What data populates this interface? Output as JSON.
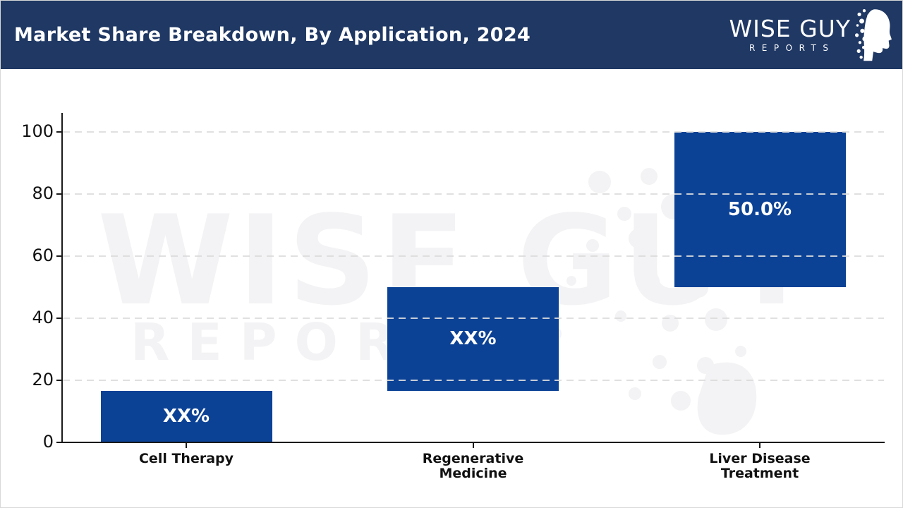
{
  "header": {
    "title": "Market Share Breakdown, By Application, 2024",
    "logo": {
      "line1": "WISE GUY",
      "line2": "REPORTS"
    }
  },
  "watermark": {
    "line1": "WISE GUY",
    "line2": "R E P O R T S"
  },
  "colors": {
    "header_bg": "#1f3864",
    "bar": "#0b4296",
    "grid": "#dcdcdc",
    "axis": "#1a1a1a",
    "bar_label": "#ffffff",
    "watermark": "#f3f3f5",
    "border": "#d8d8d8"
  },
  "chart_data": {
    "type": "bar",
    "subtype": "stacked-waterfall",
    "title": "Market Share Breakdown, By Application, 2024",
    "categories": [
      "Cell Therapy",
      "Regenerative Medicine",
      "Liver Disease Treatment"
    ],
    "bars": [
      {
        "category": "Cell Therapy",
        "label_lines": [
          "Cell Therapy"
        ],
        "start": 0,
        "end": 16.7,
        "value": 16.7,
        "data_label": "XX%"
      },
      {
        "category": "Regenerative Medicine",
        "label_lines": [
          "Regenerative",
          "Medicine"
        ],
        "start": 16.7,
        "end": 50.0,
        "value": 33.3,
        "data_label": "XX%"
      },
      {
        "category": "Liver Disease Treatment",
        "label_lines": [
          "Liver Disease",
          "Treatment"
        ],
        "start": 50.0,
        "end": 100.0,
        "value": 50.0,
        "data_label": "50.0%"
      }
    ],
    "xlabel": "",
    "ylabel": "",
    "ylim": [
      0,
      100
    ],
    "yticks": [
      0,
      20,
      40,
      60,
      80,
      100
    ],
    "grid": "horizontal-dashed-over-bars",
    "legend": "none"
  }
}
